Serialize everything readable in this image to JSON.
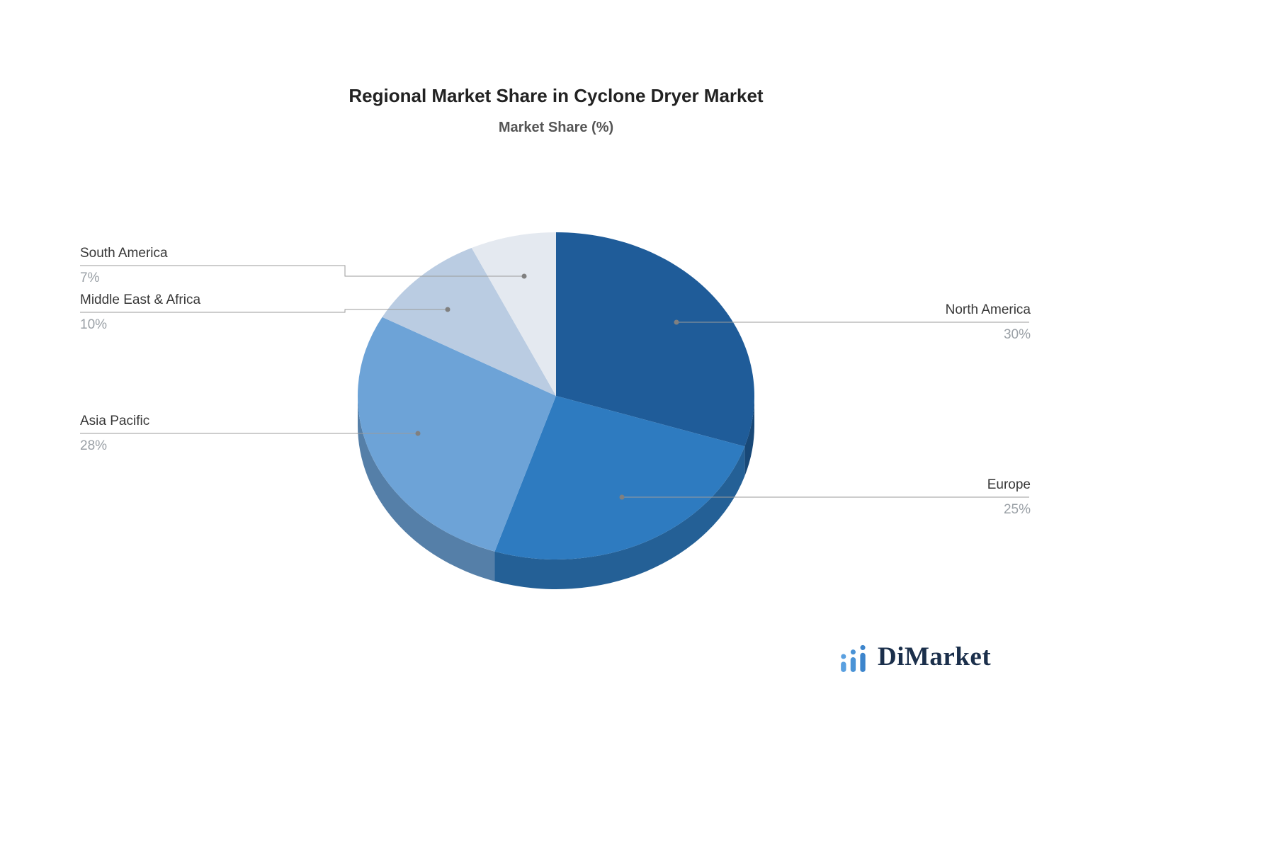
{
  "chart_data": {
    "type": "pie",
    "title": "Regional Market Share in Cyclone Dryer Market",
    "subtitle": "Market Share (%)",
    "unit": "%",
    "effect": "3d",
    "direction": "clockwise",
    "start_angle_deg": 0,
    "legend": "none",
    "slices": [
      {
        "label": "North America",
        "value": 30,
        "pct_label": "30%",
        "color": "#1f5c99",
        "label_side": "right"
      },
      {
        "label": "Europe",
        "value": 25,
        "pct_label": "25%",
        "color": "#2e7bc0",
        "label_side": "right"
      },
      {
        "label": "Asia Pacific",
        "value": 28,
        "pct_label": "28%",
        "color": "#6da3d7",
        "label_side": "left"
      },
      {
        "label": "Middle East & Africa",
        "value": 10,
        "pct_label": "10%",
        "color": "#bacce2",
        "label_side": "left"
      },
      {
        "label": "South America",
        "value": 7,
        "pct_label": "7%",
        "color": "#e4e9f0",
        "label_side": "left"
      }
    ],
    "connector_color": "#9b9b9b",
    "connector_dot_color": "#808080"
  },
  "brand": {
    "name": "DiMarket",
    "wordmark_color": "#1b2f4b",
    "icon_color": "#3d85cc",
    "icon_dot_color": "#5aa0e0"
  }
}
